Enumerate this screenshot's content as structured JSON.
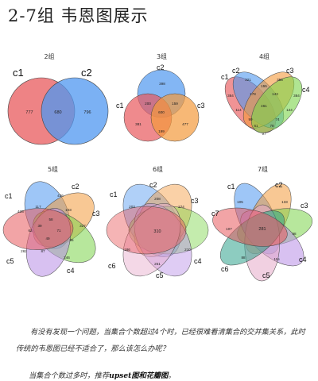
{
  "title": "2-7组 韦恩图展示",
  "panels": [
    {
      "label": "2组",
      "sets": [
        "c1",
        "c2"
      ],
      "values": [
        "777",
        "680",
        "796"
      ]
    },
    {
      "label": "3组",
      "sets": [
        "c1",
        "c2",
        "c3"
      ],
      "values": [
        "398",
        "381",
        "477",
        "200",
        "159",
        "199",
        "600"
      ]
    },
    {
      "label": "4组",
      "sets": [
        "c1",
        "c2",
        "c3",
        "c4"
      ],
      "values": [
        "384",
        "321",
        "356",
        "384",
        "114",
        "178",
        "143",
        "461",
        "124",
        "155",
        "97",
        "99",
        "74",
        "61",
        "78"
      ]
    },
    {
      "label": "5组",
      "sets": [
        "c1",
        "c2",
        "c3",
        "c4",
        "c5"
      ],
      "values": [
        "428",
        "436",
        "327",
        "246",
        "262",
        "117",
        "103",
        "95",
        "87",
        "62",
        "58",
        "71",
        "49",
        "39"
      ]
    },
    {
      "label": "6组",
      "sets": [
        "c1",
        "c2",
        "c3",
        "c4",
        "c5",
        "c6"
      ],
      "values": [
        "310",
        "203",
        "274",
        "210",
        "251",
        "186",
        "208"
      ]
    },
    {
      "label": "7组",
      "sets": [
        "c1",
        "c2",
        "c3",
        "c4",
        "c5",
        "c6",
        "c7"
      ],
      "values": [
        "281",
        "105",
        "133",
        "98",
        "115",
        "88",
        "107"
      ]
    }
  ],
  "paragraph1": "有没有发现一个问题，当集合个数超过4个时，已经很难看清集合的交并集关系，此时传统的韦恩图已经不适合了，那么该怎么办呢？",
  "paragraph2_prefix": "当集合个数过多时，推荐",
  "paragraph2_emphasis": "upset图和花瓣图",
  "paragraph2_suffix": "。",
  "colors": [
    "#e8595c",
    "#4f97f0",
    "#f39a3c",
    "#7cd44a",
    "#b88ee6",
    "#e6a9c9",
    "#2fa38c"
  ]
}
